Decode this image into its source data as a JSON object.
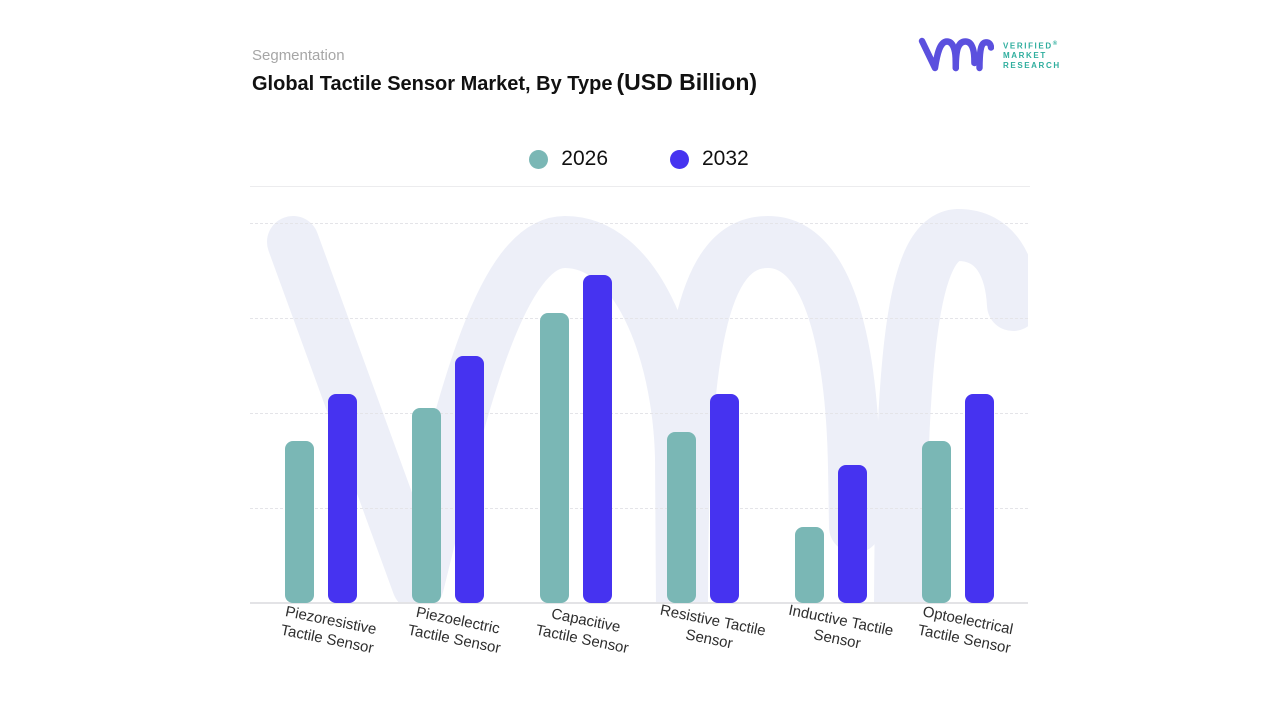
{
  "header": {
    "eyebrow": "Segmentation",
    "title": "Global Tactile Sensor Market, By Type",
    "title_suffix": "(USD Billion)"
  },
  "logo": {
    "lines": [
      "VERIFIED",
      "MARKET",
      "RESEARCH"
    ],
    "registered": "®",
    "mark_color": "#5B50DE",
    "text_color": "#2FAE9E"
  },
  "legend": {
    "items": [
      {
        "label": "2026",
        "color": "#7AB7B5"
      },
      {
        "label": "2032",
        "color": "#4633F0"
      }
    ]
  },
  "watermark": {
    "name": "vmr-monogram",
    "color": "#EDEFF8"
  },
  "chart_data": {
    "type": "bar",
    "title": "Global Tactile Sensor Market, By Type (USD Billion)",
    "categories": [
      "Piezoresistive Tactile Sensor",
      "Piezoelectric Tactile Sensor",
      "Capacitive Tactile Sensor",
      "Resistive Tactile Sensor",
      "Inductive Tactile Sensor",
      "Optoelectrical Tactile Sensor"
    ],
    "category_lines": [
      [
        "Piezoresistive",
        "Tactile Sensor"
      ],
      [
        "Piezoelectric",
        "Tactile Sensor"
      ],
      [
        "Capacitive",
        "Tactile Sensor"
      ],
      [
        "Resistive Tactile",
        "Sensor"
      ],
      [
        "Inductive Tactile",
        "Sensor"
      ],
      [
        "Optoelectrical",
        "Tactile Sensor"
      ]
    ],
    "series": [
      {
        "name": "2026",
        "color": "#7AB7B5",
        "values": [
          1.7,
          2.05,
          3.05,
          1.8,
          0.8,
          1.7
        ]
      },
      {
        "name": "2032",
        "color": "#4633F0",
        "values": [
          2.2,
          2.6,
          3.45,
          2.2,
          1.45,
          2.2
        ]
      }
    ],
    "xlabel": "",
    "ylabel": "",
    "ylim": [
      0,
      4
    ],
    "y_axis_labels_visible": false,
    "grid": "horizontal-dashed",
    "legend_position": "top-center"
  }
}
